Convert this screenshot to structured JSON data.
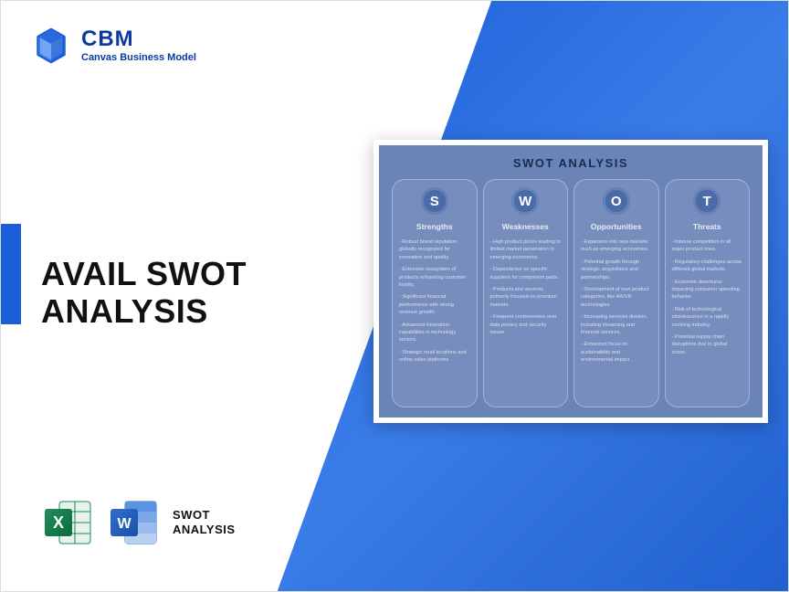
{
  "logo": {
    "brand": "CBM",
    "sub": "Canvas Business Model"
  },
  "main_title": "AVAIL SWOT\nANALYSIS",
  "file_label": "SWOT\nANALYSIS",
  "colors": {
    "brand_blue": "#0a3a9e",
    "gradient_from": "#1a5fd8",
    "gradient_to": "#2060d0",
    "accent": "#1a5fd8",
    "card_bg": "#6b84b8",
    "circle_bg": "#4a6aa8",
    "excel_green": "#1e8e5a",
    "excel_green_dark": "#0f6b3f",
    "word_blue": "#2f6fd0",
    "word_blue_dark": "#1a4fa8"
  },
  "preview": {
    "title": "SWOT ANALYSIS",
    "columns": [
      {
        "letter": "S",
        "heading": "Strengths",
        "items": [
          "Robust brand reputation globally recognized for innovation and quality.",
          "Extensive ecosystem of products enhancing customer loyalty.",
          "Significant financial performance with strong revenue growth.",
          "Advanced innovation capabilities in technology sectors.",
          "Strategic retail locations and online sales platforms."
        ]
      },
      {
        "letter": "W",
        "heading": "Weaknesses",
        "items": [
          "High product prices leading to limited market penetration in emerging economies.",
          "Dependence on specific suppliers for component parts.",
          "Products and services primarily focused on premium markets.",
          "Frequent controversies over data privacy and security issues."
        ]
      },
      {
        "letter": "O",
        "heading": "Opportunities",
        "items": [
          "Expansion into new markets such as emerging economies.",
          "Potential growth through strategic acquisitions and partnerships.",
          "Development of new product categories, like AR/VR technologies.",
          "Increasing services division, including streaming and financial services.",
          "Enhanced focus on sustainability and environmental impact."
        ]
      },
      {
        "letter": "T",
        "heading": "Threats",
        "items": [
          "Intense competition in all major product lines.",
          "Regulatory challenges across different global markets.",
          "Economic downturns impacting consumer spending behavior.",
          "Risk of technological obsolescence in a rapidly evolving industry.",
          "Potential supply chain disruptions due to global crises."
        ]
      }
    ]
  }
}
